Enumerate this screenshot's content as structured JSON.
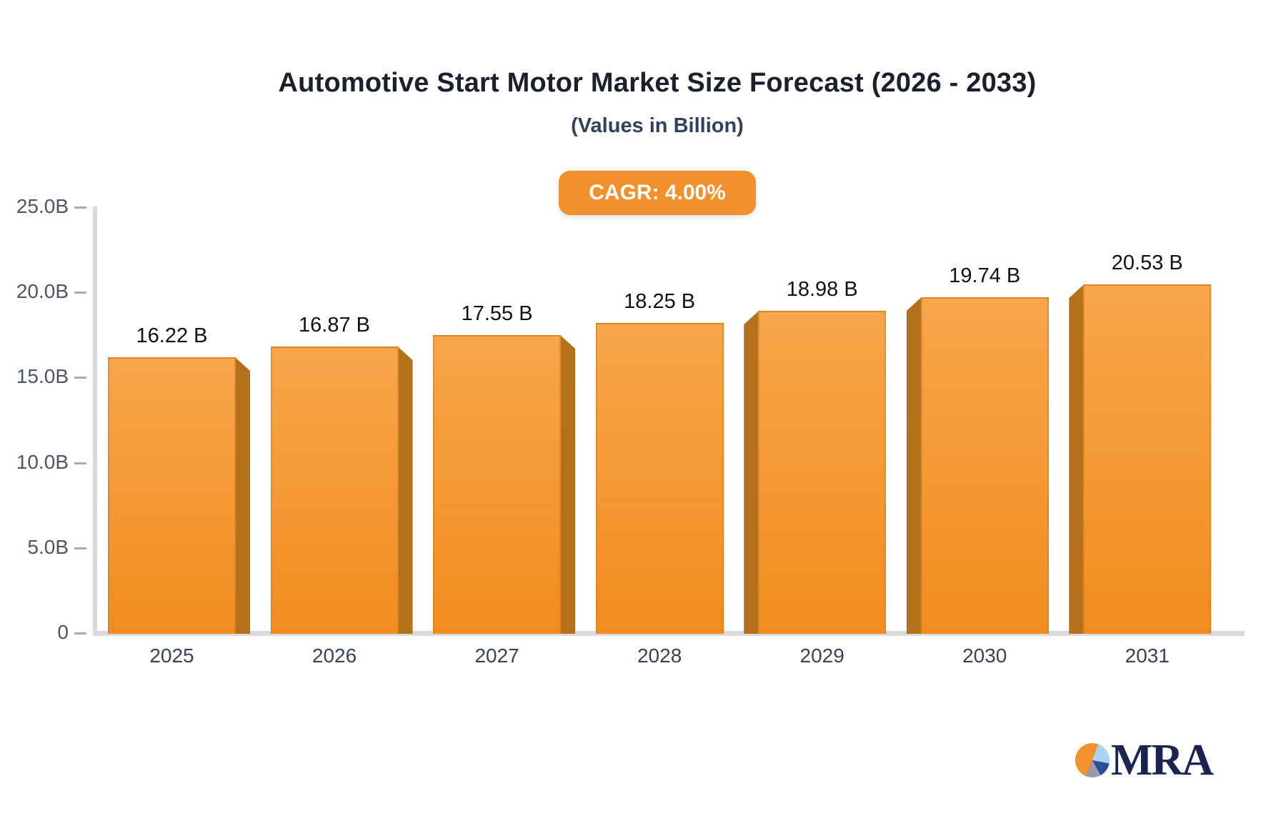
{
  "chart_data": {
    "type": "bar",
    "title": "Automotive Start Motor Market Size Forecast (2026 - 2033)",
    "subtitle": "(Values in Billion)",
    "cagr_label": "CAGR: 4.00%",
    "cagr_value": "4.00%",
    "categories": [
      "2025",
      "2026",
      "2027",
      "2028",
      "2029",
      "2030",
      "2031"
    ],
    "values": [
      16.22,
      16.87,
      17.55,
      18.25,
      18.98,
      19.74,
      20.53
    ],
    "value_labels": [
      "16.22 B",
      "16.87 B",
      "17.55 B",
      "18.25 B",
      "18.98 B",
      "19.74 B",
      "20.53 B"
    ],
    "unit": "Billion",
    "ylim": [
      0,
      25
    ],
    "y_ticks": [
      {
        "label": "25.0B",
        "value": 25
      },
      {
        "label": "20.0B",
        "value": 20
      },
      {
        "label": "15.0B",
        "value": 15
      },
      {
        "label": "10.0B",
        "value": 10
      },
      {
        "label": "5.0B",
        "value": 5
      },
      {
        "label": "0",
        "value": 0
      }
    ],
    "grid": "off",
    "legend": "none",
    "colors": {
      "bar_gradient_top": "#F7A64B",
      "bar_gradient_bottom": "#F28C1E",
      "bar_side": "#B4701A",
      "badge_background": "#F1912D",
      "badge_text": "#FFFFFF",
      "axis_line": "#D8D9DD",
      "title_text": "#1A202C",
      "subtitle_text": "#31405E"
    }
  },
  "logo": {
    "text": "MRA",
    "pie_colors": {
      "orange": "#F0932D",
      "light_blue": "#A9D3F0",
      "dark_blue": "#2B4A9B",
      "gray": "#9B9CA1"
    }
  }
}
